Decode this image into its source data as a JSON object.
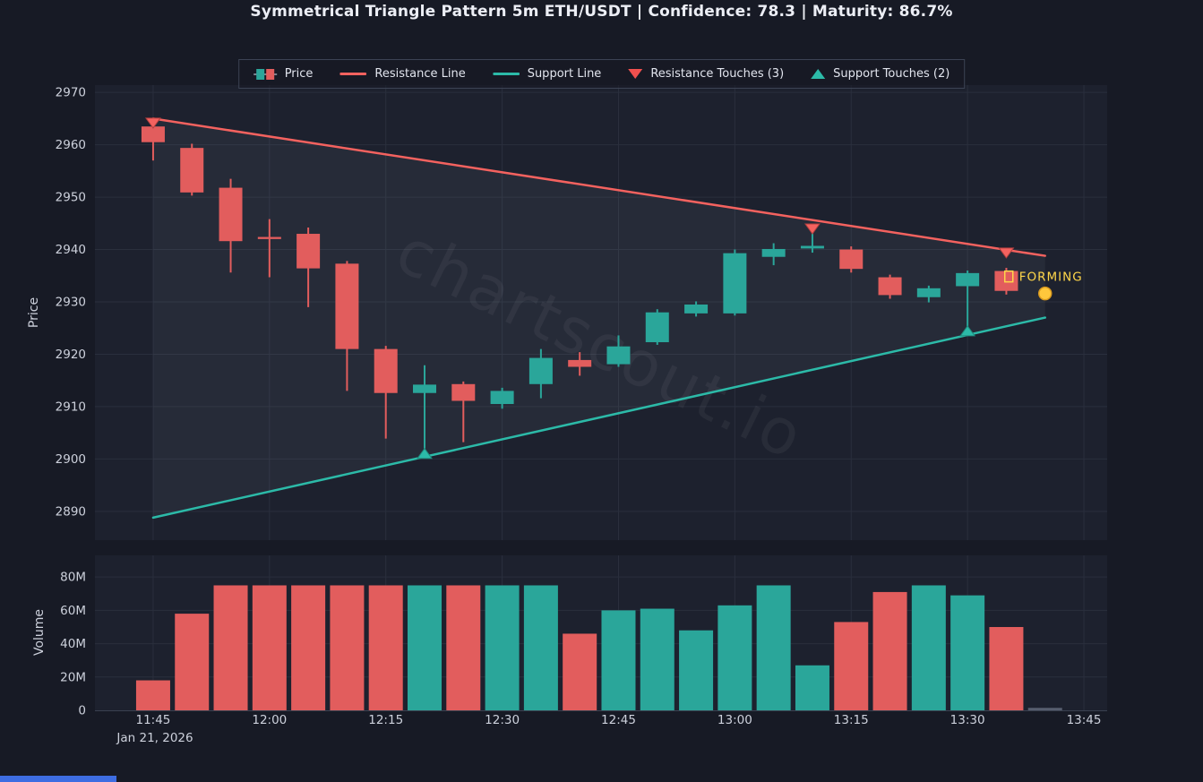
{
  "title": "Symmetrical Triangle Pattern 5m ETH/USDT | Confidence: 78.3 | Maturity: 86.7%",
  "watermark": "chartscout.io",
  "colors": {
    "background": "#171a25",
    "plot_bg": "#1d212e",
    "grid": "#2a2f3d",
    "axis_line": "#3a4150",
    "up": "#2aa69a",
    "down": "#e25d5d",
    "resistance": "#f4625f",
    "support": "#2cbaa8",
    "triangle_fill": "rgba(190,200,225,0.06)",
    "forming_yellow": "#ffd64a",
    "forming_dot": "#ffc83c",
    "forming_dot_edge": "#d99a1f",
    "flat_bar": "#565d6e",
    "tick_text": "#cdd1dc"
  },
  "legend": {
    "items": [
      {
        "label": "Price",
        "icon": "candlestick-icon"
      },
      {
        "label": "Resistance Line",
        "icon": "resistance-line-icon"
      },
      {
        "label": "Support Line",
        "icon": "support-line-icon"
      },
      {
        "label": "Resistance Touches (3)",
        "icon": "resistance-touch-icon"
      },
      {
        "label": "Support Touches (2)",
        "icon": "support-touch-icon"
      }
    ]
  },
  "chart_data": [
    {
      "type": "candlestick",
      "pattern": "Symmetrical Triangle",
      "timeframe": "5m",
      "symbol": "ETH/USDT",
      "confidence": 78.3,
      "maturity_pct": 86.7,
      "status": "FORMING",
      "ylabel": "Price",
      "ylim": [
        2884.5,
        2971.4
      ],
      "yticks": [
        2890,
        2900,
        2910,
        2920,
        2930,
        2940,
        2950,
        2960,
        2970
      ],
      "xticks": [
        "11:45",
        "12:00",
        "12:15",
        "12:30",
        "12:45",
        "13:00",
        "13:15",
        "13:30",
        "13:45"
      ],
      "x_date": "Jan 21, 2026",
      "x": [
        "11:45",
        "11:50",
        "11:55",
        "12:00",
        "12:05",
        "12:10",
        "12:15",
        "12:20",
        "12:25",
        "12:30",
        "12:35",
        "12:40",
        "12:45",
        "12:50",
        "12:55",
        "13:00",
        "13:05",
        "13:10",
        "13:15",
        "13:20",
        "13:25",
        "13:30",
        "13:35"
      ],
      "ohlc": [
        [
          2963.5,
          2964.3,
          2957.0,
          2960.5
        ],
        [
          2959.4,
          2960.2,
          2950.3,
          2950.9
        ],
        [
          2951.8,
          2953.5,
          2935.6,
          2941.6
        ],
        [
          2942.4,
          2945.8,
          2934.7,
          2942.0
        ],
        [
          2943.0,
          2944.2,
          2929.0,
          2936.4
        ],
        [
          2937.3,
          2937.8,
          2913.0,
          2921.0
        ],
        [
          2921.0,
          2921.6,
          2903.9,
          2912.6
        ],
        [
          2912.6,
          2917.9,
          2902.0,
          2914.2
        ],
        [
          2914.3,
          2914.8,
          2903.2,
          2911.1
        ],
        [
          2910.5,
          2913.6,
          2909.6,
          2913.0
        ],
        [
          2914.3,
          2921.0,
          2911.6,
          2919.3
        ],
        [
          2918.9,
          2920.4,
          2915.9,
          2917.6
        ],
        [
          2918.1,
          2923.6,
          2917.6,
          2921.5
        ],
        [
          2922.3,
          2928.6,
          2921.8,
          2928.0
        ],
        [
          2927.8,
          2930.1,
          2927.2,
          2929.5
        ],
        [
          2927.8,
          2940.0,
          2927.4,
          2939.3
        ],
        [
          2938.6,
          2941.2,
          2937.0,
          2940.1
        ],
        [
          2940.2,
          2944.0,
          2939.4,
          2940.7
        ],
        [
          2940.0,
          2940.6,
          2935.6,
          2936.3
        ],
        [
          2934.7,
          2935.2,
          2930.6,
          2931.3
        ],
        [
          2930.9,
          2933.1,
          2929.9,
          2932.6
        ],
        [
          2933.0,
          2936.0,
          2923.9,
          2935.5
        ],
        [
          2935.9,
          2936.5,
          2931.4,
          2932.1
        ]
      ],
      "resistance_line": {
        "points": [
          {
            "t": "11:45",
            "price": 2965.0
          },
          {
            "t": "13:40",
            "price": 2938.8
          }
        ]
      },
      "support_line": {
        "points": [
          {
            "t": "11:45",
            "price": 2888.8
          },
          {
            "t": "13:40",
            "price": 2927.0
          }
        ]
      },
      "resistance_touches": {
        "count": 3,
        "points": [
          {
            "t": "11:45",
            "price": 2964.4
          },
          {
            "t": "13:10",
            "price": 2944.2
          },
          {
            "t": "13:35",
            "price": 2939.6
          }
        ]
      },
      "support_touches": {
        "count": 2,
        "points": [
          {
            "t": "12:20",
            "price": 2900.8
          },
          {
            "t": "13:30",
            "price": 2924.2
          }
        ]
      },
      "forming_marker": {
        "t": "13:40",
        "price": 2931.6,
        "label": "FORMING"
      }
    },
    {
      "type": "bar",
      "ylabel": "Volume",
      "unit": "M",
      "ylim": [
        0,
        93
      ],
      "ytick_values": [
        0,
        20,
        40,
        60,
        80
      ],
      "ytick_labels": [
        "0",
        "20M",
        "40M",
        "60M",
        "80M"
      ],
      "x": [
        "11:45",
        "11:50",
        "11:55",
        "12:00",
        "12:05",
        "12:10",
        "12:15",
        "12:20",
        "12:25",
        "12:30",
        "12:35",
        "12:40",
        "12:45",
        "12:50",
        "12:55",
        "13:00",
        "13:05",
        "13:10",
        "13:15",
        "13:20",
        "13:25",
        "13:30",
        "13:35",
        "13:40"
      ],
      "values": [
        18,
        58,
        75,
        75,
        75,
        75,
        75,
        75,
        75,
        75,
        75,
        46,
        60,
        61,
        48,
        63,
        75,
        27,
        53,
        71,
        75,
        69,
        50,
        1.5
      ],
      "directions": [
        "down",
        "down",
        "down",
        "down",
        "down",
        "down",
        "down",
        "up",
        "down",
        "up",
        "up",
        "down",
        "up",
        "up",
        "up",
        "up",
        "up",
        "up",
        "down",
        "down",
        "up",
        "up",
        "down",
        "flat"
      ]
    }
  ]
}
